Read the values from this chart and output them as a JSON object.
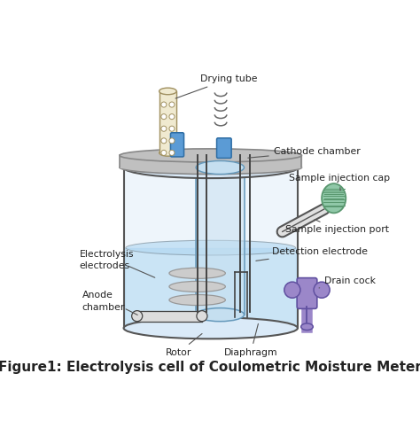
{
  "title": "Figure1: Electrolysis cell of Coulometric Moisture Meter",
  "title_fontsize": 11,
  "labels": {
    "drying_tube": "Drying tube",
    "cathode_chamber": "Cathode chamber",
    "sample_injection_cap": "Sample injection cap",
    "sample_injection_port": "Sample injection port",
    "detection_electrode": "Detection electrode",
    "electrolysis_electrodes": "Electrolysis\nelectrodes",
    "anode_chamber": "Anode\nchamber",
    "rotor": "Rotor",
    "diaphragm": "Diaphragm",
    "drain_cock": "Drain cock"
  },
  "colors": {
    "bg": "#ffffff",
    "vessel_outline": "#555555",
    "vessel_fill": "#daeaf8",
    "liquid_fill": "#aed6f1",
    "lid_fill": "#c0c0c0",
    "lid_stroke": "#888888",
    "drying_tube_fill": "#f0ead0",
    "drying_tube_stroke": "#a09060",
    "blue_cap_fill": "#5b9bd5",
    "blue_cap_stroke": "#2e6da4",
    "inner_vessel_fill": "#c5dff0",
    "inner_vessel_stroke": "#6699bb",
    "electrode_color": "#444444",
    "disk_fill": "#cccccc",
    "disk_stroke": "#999999",
    "anode_tube_fill": "#dddddd",
    "injection_cap_fill": "#90c8a8",
    "injection_cap_stroke": "#5a9870",
    "drain_fill": "#9b87c9",
    "drain_stroke": "#6050a0",
    "line_color": "#555555",
    "text_color": "#222222",
    "spiral_color": "#666666"
  }
}
